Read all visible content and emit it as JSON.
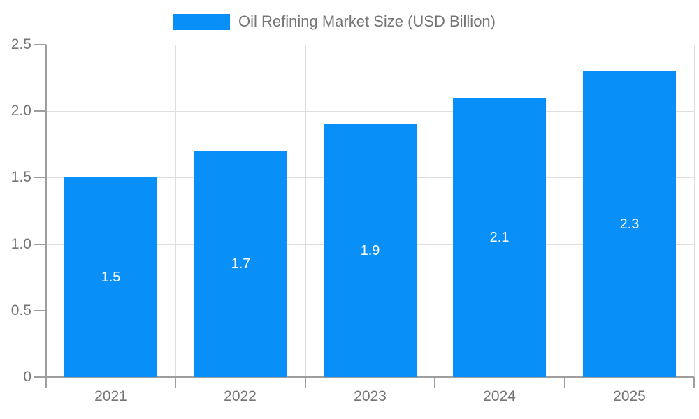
{
  "legend": {
    "label": "Oil Refining Market Size (USD Billion)"
  },
  "chart_data": {
    "type": "bar",
    "title": "",
    "categories": [
      "2021",
      "2022",
      "2023",
      "2024",
      "2025"
    ],
    "values": [
      1.5,
      1.7,
      1.9,
      2.1,
      2.3
    ],
    "value_labels": [
      "1.5",
      "1.7",
      "1.9",
      "2.1",
      "2.3"
    ],
    "series_name": "Oil Refining Market Size (USD Billion)",
    "xlabel": "",
    "ylabel": "",
    "ylim": [
      0,
      2.5
    ],
    "yticks": [
      {
        "value": 0,
        "label": "0"
      },
      {
        "value": 0.5,
        "label": "0.5"
      },
      {
        "value": 1.0,
        "label": "1.0"
      },
      {
        "value": 1.5,
        "label": "1.5"
      },
      {
        "value": 2.0,
        "label": "2.0"
      },
      {
        "value": 2.5,
        "label": "2.5"
      }
    ],
    "grid": true,
    "legend_position": "top",
    "colors": {
      "bar": "#0890F8",
      "axis": "#9e9e9e",
      "gridline": "#dedede",
      "text": "#757575",
      "bar_label": "#ffffff"
    }
  }
}
